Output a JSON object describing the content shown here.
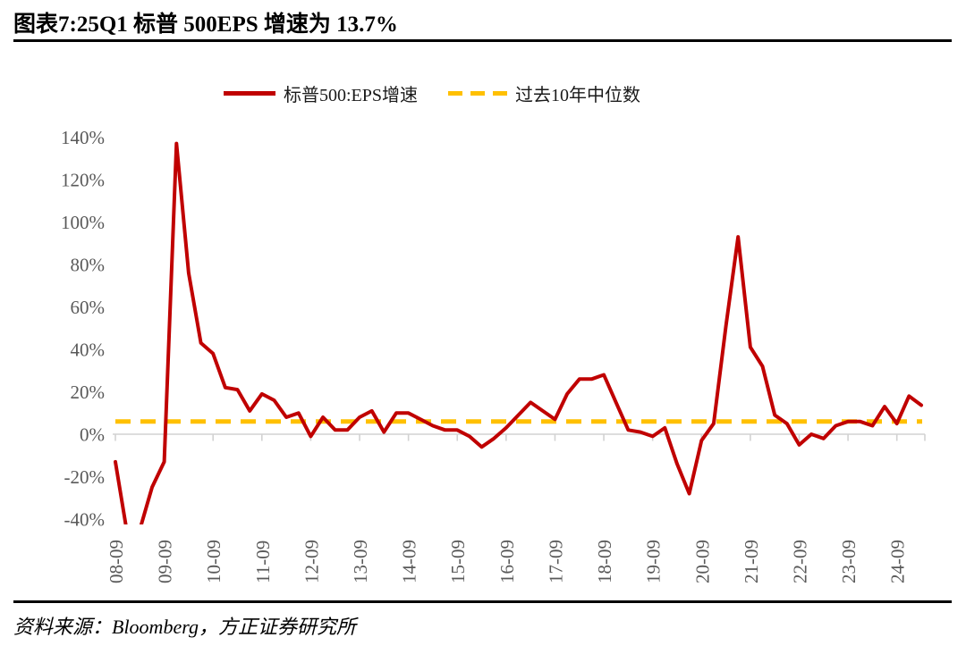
{
  "header": {
    "title": "图表7:25Q1 标普 500EPS 增速为 13.7%"
  },
  "legend": {
    "items": [
      {
        "label": "标普500:EPS增速",
        "color": "#C00000",
        "line_style": "solid"
      },
      {
        "label": "过去10年中位数",
        "color": "#FFC000",
        "line_style": "dashed"
      }
    ]
  },
  "footer": {
    "source": "资料来源：Bloomberg，方正证券研究所"
  },
  "chart_data": {
    "type": "line",
    "title": "25Q1 标普500 EPS 增速为 13.7%",
    "x": [
      "08-09",
      "08-12",
      "09-03",
      "09-06",
      "09-09",
      "09-12",
      "10-03",
      "10-06",
      "10-09",
      "10-12",
      "11-03",
      "11-06",
      "11-09",
      "11-12",
      "12-03",
      "12-06",
      "12-09",
      "12-12",
      "13-03",
      "13-06",
      "13-09",
      "13-12",
      "14-03",
      "14-06",
      "14-09",
      "14-12",
      "15-03",
      "15-06",
      "15-09",
      "15-12",
      "16-03",
      "16-06",
      "16-09",
      "16-12",
      "17-03",
      "17-06",
      "17-09",
      "17-12",
      "18-03",
      "18-06",
      "18-09",
      "18-12",
      "19-03",
      "19-06",
      "19-09",
      "19-12",
      "20-03",
      "20-06",
      "20-09",
      "20-12",
      "21-03",
      "21-06",
      "21-09",
      "21-12",
      "22-03",
      "22-06",
      "22-09",
      "22-12",
      "23-03",
      "23-06",
      "23-09",
      "23-12",
      "24-03",
      "24-06",
      "24-09",
      "24-12",
      "25-03"
    ],
    "series": [
      {
        "name": "标普500:EPS增速",
        "color": "#C00000",
        "style": "solid",
        "values": [
          -13,
          -48,
          -45,
          -25,
          -13,
          137,
          76,
          43,
          38,
          22,
          21,
          11,
          19,
          16,
          8,
          10,
          -1,
          8,
          2,
          2,
          8,
          11,
          1,
          10,
          10,
          7,
          4,
          2,
          2,
          -1,
          -6,
          -2,
          3,
          9,
          15,
          11,
          7,
          19,
          26,
          26,
          28,
          15,
          2,
          1,
          -1,
          3,
          -14,
          -28,
          -3,
          5,
          51,
          93,
          41,
          32,
          9,
          5,
          -5,
          0,
          -2,
          4,
          6,
          6,
          4,
          13,
          5,
          18,
          13.7
        ]
      },
      {
        "name": "过去10年中位数",
        "color": "#FFC000",
        "style": "dashed",
        "constant_value": 6
      }
    ],
    "x_tick_labels": [
      "08-09",
      "09-09",
      "10-09",
      "11-09",
      "12-09",
      "13-09",
      "14-09",
      "15-09",
      "16-09",
      "17-09",
      "18-09",
      "19-09",
      "20-09",
      "21-09",
      "22-09",
      "23-09",
      "24-09"
    ],
    "y_ticks": [
      140,
      120,
      100,
      80,
      60,
      40,
      20,
      0,
      -20,
      -40
    ],
    "y_tick_labels": [
      "140%",
      "120%",
      "100%",
      "80%",
      "60%",
      "40%",
      "20%",
      "0%",
      "-20%",
      "-40%"
    ],
    "ylim": [
      -44,
      145
    ],
    "xlabel": "",
    "ylabel": "",
    "grid": false,
    "legend_position": "top",
    "axis_color": "#D2D2D2",
    "label_color": "#595959"
  }
}
